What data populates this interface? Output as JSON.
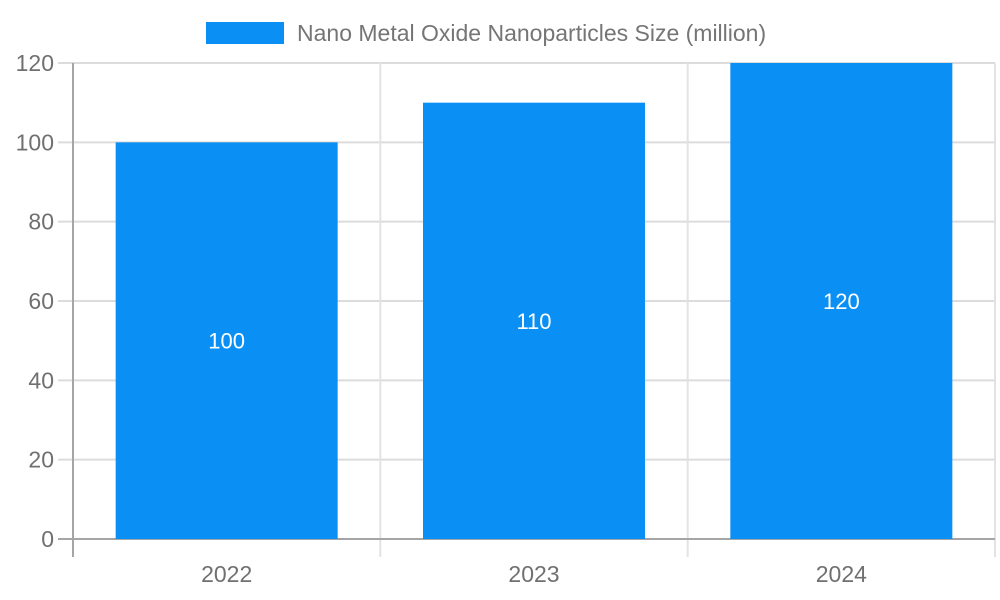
{
  "legend": {
    "label": "Nano Metal Oxide Nanoparticles Size (million)"
  },
  "chart_data": {
    "type": "bar",
    "title": "Nano Metal Oxide Nanoparticles Size (million)",
    "series_name": "Nano Metal Oxide Nanoparticles Size (million)",
    "categories": [
      "2022",
      "2023",
      "2024"
    ],
    "values": [
      100,
      110,
      120
    ],
    "data_labels": [
      "100",
      "110",
      "120"
    ],
    "y_ticks": [
      0,
      20,
      40,
      60,
      80,
      100,
      120
    ],
    "ylim": [
      0,
      120
    ],
    "xlabel": "",
    "ylabel": "",
    "grid": true,
    "legend_position": "top",
    "colors": {
      "bar": "#0a90f5",
      "data_label": "#ffffff",
      "gridline": "#dcdcdc",
      "axis_line": "#a5a5a5",
      "axis_text": "#707070",
      "legend_text": "#757575"
    }
  }
}
